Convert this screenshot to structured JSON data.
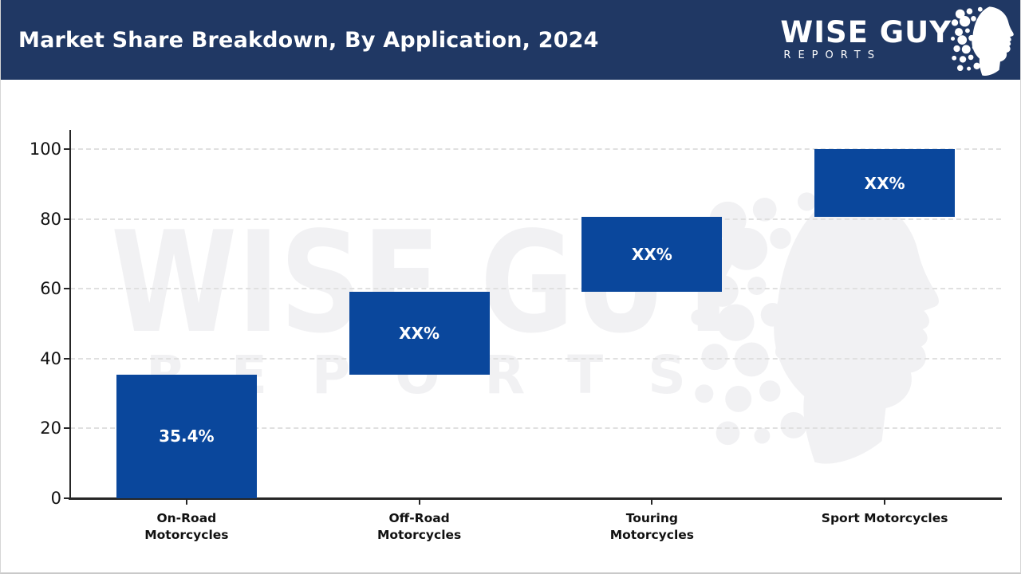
{
  "header": {
    "title": "Market Share Breakdown, By Application, 2024",
    "bg_color": "#203864",
    "brand_line1": "WISE GUY",
    "brand_line2": "REPORTS"
  },
  "watermark": {
    "line1": "WISE GUY",
    "line2": "REPORTS",
    "color": "#f1f1f3"
  },
  "chart_data": {
    "type": "bar",
    "subtype": "waterfall",
    "title": "Market Share Breakdown, By Application, 2024",
    "categories": [
      "On-Road\nMotorcycles",
      "Off-Road\nMotorcycles",
      "Touring\nMotorcycles",
      "Sport Motorcycles"
    ],
    "segments": [
      {
        "start": 0,
        "end": 35.4,
        "label": "35.4%"
      },
      {
        "start": 35.4,
        "end": 59.2,
        "label": "XX%"
      },
      {
        "start": 59.2,
        "end": 80.5,
        "label": "XX%"
      },
      {
        "start": 80.5,
        "end": 100,
        "label": "XX%"
      }
    ],
    "ylim": [
      0,
      100
    ],
    "yticks": [
      0,
      20,
      40,
      60,
      80,
      100
    ],
    "grid": true,
    "legend": false,
    "bar_color": "#0a479c",
    "bar_label_color": "#ffffff",
    "grid_color": "#e0e0e0",
    "axis_color": "#262626"
  }
}
